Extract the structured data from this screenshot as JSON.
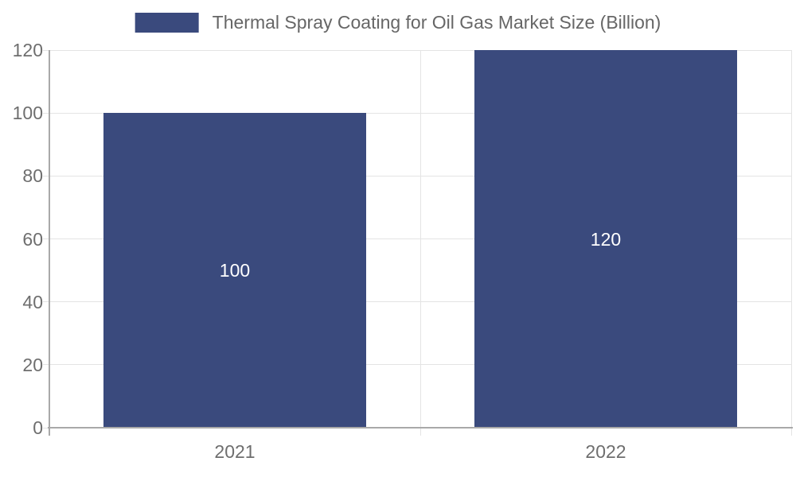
{
  "chart_data": {
    "type": "bar",
    "title": "Thermal Spray Coating for Oil Gas Market Size (Billion)",
    "categories": [
      "2021",
      "2022"
    ],
    "series": [
      {
        "name": "Thermal Spray Coating for Oil Gas Market Size (Billion)",
        "values": [
          100,
          120
        ]
      }
    ],
    "data_labels": [
      "100",
      "120"
    ],
    "xlabel": "",
    "ylabel": "",
    "ylim": [
      0,
      120
    ],
    "yticks": [
      0,
      20,
      40,
      60,
      80,
      100,
      120
    ],
    "grid": true,
    "legend_position": "top-center",
    "bar_width_fraction": 0.71,
    "colors": {
      "bar": "#3A4A7D",
      "grid_line": "#e4e4e4",
      "axis_line": "#a9a9a9",
      "tick_label": "#6e6e6e",
      "legend_text": "#666666",
      "data_label": "#ffffff",
      "background": "#ffffff"
    }
  },
  "legend": {
    "label": "Thermal Spray Coating for Oil Gas Market Size (Billion)",
    "swatch_color": "#3A4A7D"
  }
}
